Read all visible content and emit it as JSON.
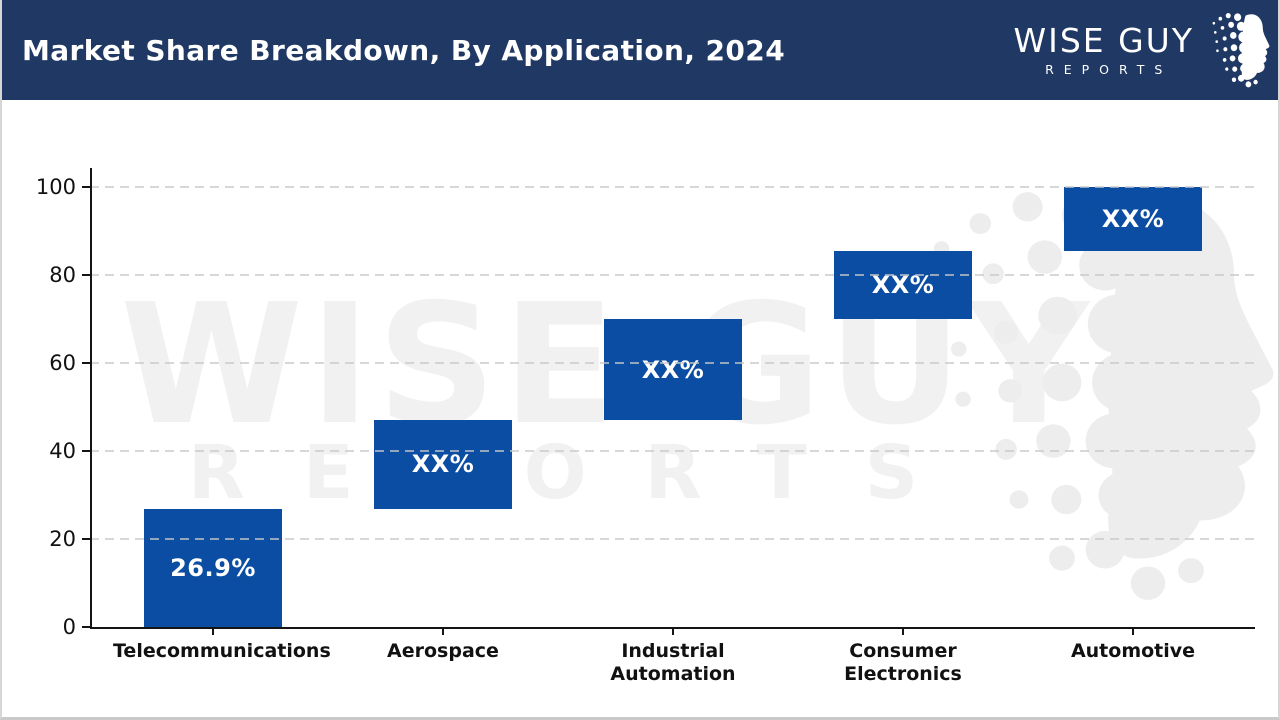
{
  "header": {
    "title": "Market Share Breakdown, By Application, 2024",
    "logo": {
      "line1": "WISE GUY",
      "line2": "REPORTS"
    }
  },
  "watermark": {
    "line1": "WISE GUY",
    "line2": "REPORTS"
  },
  "colors": {
    "header_bg": "#1f3864",
    "bar": "#0b4da2",
    "grid": "#d9d9d9",
    "axis": "#141414",
    "bar_label": "#ffffff",
    "watermark": "#f1f1f1"
  },
  "chart_data": {
    "type": "bar",
    "subtype": "waterfall",
    "title": "Market Share Breakdown, By Application, 2024",
    "categories": [
      "Telecommunications",
      "Aerospace",
      "Industrial Automation",
      "Consumer Electronics",
      "Automotive"
    ],
    "y_ticks": [
      0,
      20,
      40,
      60,
      80,
      100
    ],
    "ylim": [
      0,
      105
    ],
    "xlabel": "",
    "ylabel": "",
    "grid": "horizontal-dashed",
    "legend_position": "none",
    "series": [
      {
        "name": "Market Share",
        "segments": [
          {
            "category": "Telecommunications",
            "start": 0,
            "end": 26.9,
            "value": 26.9,
            "value_label": "26.9%"
          },
          {
            "category": "Aerospace",
            "start": 26.9,
            "end": 47.0,
            "value": 20.1,
            "value_label": "XX%"
          },
          {
            "category": "Industrial Automation",
            "start": 47.0,
            "end": 70.0,
            "value": 23.0,
            "value_label": "XX%"
          },
          {
            "category": "Consumer Electronics",
            "start": 70.0,
            "end": 85.5,
            "value": 15.5,
            "value_label": "XX%"
          },
          {
            "category": "Automotive",
            "start": 85.5,
            "end": 100.0,
            "value": 14.5,
            "value_label": "XX%"
          }
        ]
      }
    ]
  }
}
